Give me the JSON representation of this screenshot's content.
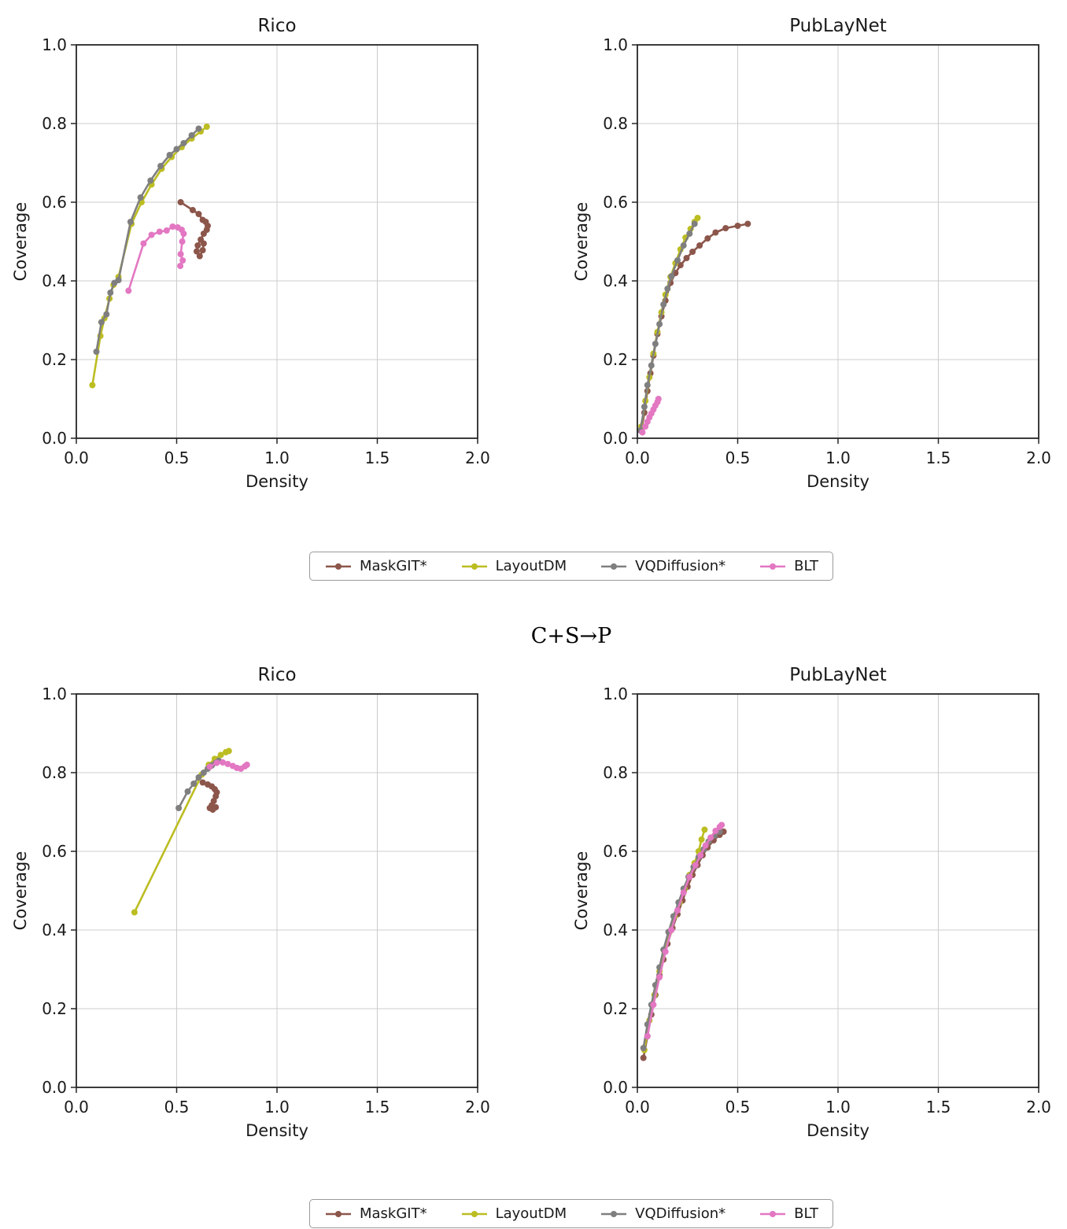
{
  "section_title": "C+S→P",
  "legend": {
    "labels": [
      "MaskGIT*",
      "LayoutDM",
      "VQDiffusion*",
      "BLT"
    ]
  },
  "colors": {
    "maskgit": "#8c564b",
    "layoutdm": "#bcbd22",
    "vqdiffusion": "#7f7f7f",
    "blt": "#e377c2"
  },
  "chart_data": [
    {
      "type": "line",
      "title": "Rico",
      "xlabel": "Density",
      "ylabel": "Coverage",
      "xlim": [
        0.0,
        2.0
      ],
      "ylim": [
        0.0,
        1.0
      ],
      "xticks": [
        0.0,
        0.5,
        1.0,
        1.5,
        2.0
      ],
      "yticks": [
        0.0,
        0.2,
        0.4,
        0.6,
        0.8,
        1.0
      ],
      "grid": true,
      "series": [
        {
          "name": "MaskGIT*",
          "color": "#8c564b",
          "points": [
            [
              0.52,
              0.6
            ],
            [
              0.58,
              0.58
            ],
            [
              0.61,
              0.57
            ],
            [
              0.63,
              0.555
            ],
            [
              0.645,
              0.55
            ],
            [
              0.655,
              0.54
            ],
            [
              0.65,
              0.53
            ],
            [
              0.635,
              0.52
            ],
            [
              0.62,
              0.505
            ],
            [
              0.605,
              0.49
            ],
            [
              0.6,
              0.475
            ],
            [
              0.615,
              0.463
            ],
            [
              0.63,
              0.478
            ],
            [
              0.635,
              0.495
            ]
          ]
        },
        {
          "name": "LayoutDM",
          "color": "#bcbd22",
          "points": [
            [
              0.08,
              0.135
            ],
            [
              0.12,
              0.26
            ],
            [
              0.14,
              0.305
            ],
            [
              0.165,
              0.355
            ],
            [
              0.185,
              0.39
            ],
            [
              0.21,
              0.41
            ],
            [
              0.275,
              0.545
            ],
            [
              0.325,
              0.6
            ],
            [
              0.375,
              0.645
            ],
            [
              0.425,
              0.685
            ],
            [
              0.475,
              0.715
            ],
            [
              0.525,
              0.74
            ],
            [
              0.575,
              0.762
            ],
            [
              0.62,
              0.78
            ],
            [
              0.65,
              0.792
            ]
          ]
        },
        {
          "name": "VQDiffusion*",
          "color": "#7f7f7f",
          "points": [
            [
              0.1,
              0.22
            ],
            [
              0.125,
              0.295
            ],
            [
              0.15,
              0.315
            ],
            [
              0.17,
              0.37
            ],
            [
              0.19,
              0.395
            ],
            [
              0.21,
              0.402
            ],
            [
              0.27,
              0.55
            ],
            [
              0.32,
              0.612
            ],
            [
              0.37,
              0.655
            ],
            [
              0.42,
              0.692
            ],
            [
              0.465,
              0.72
            ],
            [
              0.5,
              0.735
            ],
            [
              0.535,
              0.75
            ],
            [
              0.575,
              0.77
            ],
            [
              0.61,
              0.787
            ]
          ]
        },
        {
          "name": "BLT",
          "color": "#e377c2",
          "points": [
            [
              0.26,
              0.375
            ],
            [
              0.335,
              0.495
            ],
            [
              0.375,
              0.517
            ],
            [
              0.415,
              0.525
            ],
            [
              0.45,
              0.528
            ],
            [
              0.48,
              0.538
            ],
            [
              0.505,
              0.536
            ],
            [
              0.525,
              0.53
            ],
            [
              0.535,
              0.52
            ],
            [
              0.528,
              0.5
            ],
            [
              0.52,
              0.468
            ],
            [
              0.53,
              0.452
            ],
            [
              0.518,
              0.438
            ]
          ]
        }
      ]
    },
    {
      "type": "line",
      "title": "PubLayNet",
      "xlabel": "Density",
      "ylabel": "Coverage",
      "xlim": [
        0.0,
        2.0
      ],
      "ylim": [
        0.0,
        1.0
      ],
      "xticks": [
        0.0,
        0.5,
        1.0,
        1.5,
        2.0
      ],
      "yticks": [
        0.0,
        0.2,
        0.4,
        0.6,
        0.8,
        1.0
      ],
      "grid": true,
      "series": [
        {
          "name": "MaskGIT*",
          "color": "#8c564b",
          "points": [
            [
              0.02,
              0.02
            ],
            [
              0.035,
              0.065
            ],
            [
              0.05,
              0.12
            ],
            [
              0.065,
              0.165
            ],
            [
              0.08,
              0.21
            ],
            [
              0.1,
              0.265
            ],
            [
              0.12,
              0.31
            ],
            [
              0.14,
              0.35
            ],
            [
              0.165,
              0.395
            ],
            [
              0.19,
              0.42
            ],
            [
              0.215,
              0.44
            ],
            [
              0.245,
              0.458
            ],
            [
              0.275,
              0.474
            ],
            [
              0.31,
              0.49
            ],
            [
              0.35,
              0.508
            ],
            [
              0.39,
              0.523
            ],
            [
              0.44,
              0.534
            ],
            [
              0.5,
              0.54
            ],
            [
              0.55,
              0.545
            ]
          ]
        },
        {
          "name": "LayoutDM",
          "color": "#bcbd22",
          "points": [
            [
              0.02,
              0.03
            ],
            [
              0.04,
              0.095
            ],
            [
              0.06,
              0.155
            ],
            [
              0.08,
              0.215
            ],
            [
              0.1,
              0.27
            ],
            [
              0.12,
              0.32
            ],
            [
              0.14,
              0.365
            ],
            [
              0.165,
              0.41
            ],
            [
              0.19,
              0.445
            ],
            [
              0.215,
              0.48
            ],
            [
              0.24,
              0.51
            ],
            [
              0.265,
              0.532
            ],
            [
              0.285,
              0.55
            ],
            [
              0.3,
              0.56
            ]
          ]
        },
        {
          "name": "VQDiffusion*",
          "color": "#7f7f7f",
          "points": [
            [
              0.015,
              0.02
            ],
            [
              0.035,
              0.08
            ],
            [
              0.05,
              0.135
            ],
            [
              0.07,
              0.185
            ],
            [
              0.09,
              0.24
            ],
            [
              0.11,
              0.29
            ],
            [
              0.13,
              0.34
            ],
            [
              0.15,
              0.38
            ],
            [
              0.17,
              0.412
            ],
            [
              0.2,
              0.452
            ],
            [
              0.23,
              0.49
            ],
            [
              0.26,
              0.52
            ],
            [
              0.285,
              0.545
            ]
          ]
        },
        {
          "name": "BLT",
          "color": "#e377c2",
          "points": [
            [
              0.025,
              0.015
            ],
            [
              0.04,
              0.03
            ],
            [
              0.05,
              0.042
            ],
            [
              0.06,
              0.053
            ],
            [
              0.07,
              0.063
            ],
            [
              0.08,
              0.073
            ],
            [
              0.09,
              0.083
            ],
            [
              0.1,
              0.092
            ],
            [
              0.105,
              0.1
            ]
          ]
        }
      ]
    },
    {
      "type": "line",
      "title": "Rico",
      "xlabel": "Density",
      "ylabel": "Coverage",
      "xlim": [
        0.0,
        2.0
      ],
      "ylim": [
        0.0,
        1.0
      ],
      "xticks": [
        0.0,
        0.5,
        1.0,
        1.5,
        2.0
      ],
      "yticks": [
        0.0,
        0.2,
        0.4,
        0.6,
        0.8,
        1.0
      ],
      "grid": true,
      "series": [
        {
          "name": "MaskGIT*",
          "color": "#8c564b",
          "points": [
            [
              0.63,
              0.775
            ],
            [
              0.655,
              0.77
            ],
            [
              0.675,
              0.765
            ],
            [
              0.69,
              0.758
            ],
            [
              0.7,
              0.75
            ],
            [
              0.695,
              0.74
            ],
            [
              0.685,
              0.728
            ],
            [
              0.675,
              0.717
            ],
            [
              0.665,
              0.71
            ],
            [
              0.68,
              0.706
            ],
            [
              0.695,
              0.712
            ]
          ]
        },
        {
          "name": "LayoutDM",
          "color": "#bcbd22",
          "points": [
            [
              0.29,
              0.445
            ],
            [
              0.625,
              0.795
            ],
            [
              0.66,
              0.82
            ],
            [
              0.69,
              0.835
            ],
            [
              0.72,
              0.845
            ],
            [
              0.745,
              0.852
            ],
            [
              0.76,
              0.855
            ]
          ]
        },
        {
          "name": "VQDiffusion*",
          "color": "#7f7f7f",
          "points": [
            [
              0.51,
              0.71
            ],
            [
              0.555,
              0.752
            ],
            [
              0.585,
              0.772
            ],
            [
              0.61,
              0.788
            ],
            [
              0.635,
              0.8
            ],
            [
              0.655,
              0.81
            ],
            [
              0.675,
              0.818
            ],
            [
              0.695,
              0.825
            ],
            [
              0.71,
              0.83
            ]
          ]
        },
        {
          "name": "BLT",
          "color": "#e377c2",
          "points": [
            [
              0.665,
              0.815
            ],
            [
              0.7,
              0.825
            ],
            [
              0.73,
              0.826
            ],
            [
              0.755,
              0.822
            ],
            [
              0.78,
              0.817
            ],
            [
              0.8,
              0.812
            ],
            [
              0.82,
              0.81
            ],
            [
              0.84,
              0.816
            ],
            [
              0.85,
              0.82
            ]
          ]
        }
      ]
    },
    {
      "type": "line",
      "title": "PubLayNet",
      "xlabel": "Density",
      "ylabel": "Coverage",
      "xlim": [
        0.0,
        2.0
      ],
      "ylim": [
        0.0,
        1.0
      ],
      "xticks": [
        0.0,
        0.5,
        1.0,
        1.5,
        2.0
      ],
      "yticks": [
        0.0,
        0.2,
        0.4,
        0.6,
        0.8,
        1.0
      ],
      "grid": true,
      "series": [
        {
          "name": "MaskGIT*",
          "color": "#8c564b",
          "points": [
            [
              0.03,
              0.075
            ],
            [
              0.05,
              0.13
            ],
            [
              0.07,
              0.185
            ],
            [
              0.09,
              0.235
            ],
            [
              0.11,
              0.285
            ],
            [
              0.13,
              0.325
            ],
            [
              0.15,
              0.365
            ],
            [
              0.175,
              0.405
            ],
            [
              0.2,
              0.44
            ],
            [
              0.225,
              0.475
            ],
            [
              0.25,
              0.51
            ],
            [
              0.275,
              0.54
            ],
            [
              0.3,
              0.565
            ],
            [
              0.325,
              0.59
            ],
            [
              0.35,
              0.61
            ],
            [
              0.38,
              0.628
            ],
            [
              0.41,
              0.642
            ],
            [
              0.43,
              0.65
            ]
          ]
        },
        {
          "name": "LayoutDM",
          "color": "#bcbd22",
          "points": [
            [
              0.035,
              0.095
            ],
            [
              0.06,
              0.17
            ],
            [
              0.085,
              0.235
            ],
            [
              0.11,
              0.295
            ],
            [
              0.135,
              0.345
            ],
            [
              0.16,
              0.395
            ],
            [
              0.185,
              0.435
            ],
            [
              0.21,
              0.47
            ],
            [
              0.235,
              0.505
            ],
            [
              0.26,
              0.54
            ],
            [
              0.285,
              0.57
            ],
            [
              0.305,
              0.6
            ],
            [
              0.32,
              0.63
            ],
            [
              0.335,
              0.655
            ]
          ]
        },
        {
          "name": "VQDiffusion*",
          "color": "#7f7f7f",
          "points": [
            [
              0.03,
              0.1
            ],
            [
              0.05,
              0.16
            ],
            [
              0.07,
              0.21
            ],
            [
              0.09,
              0.26
            ],
            [
              0.11,
              0.305
            ],
            [
              0.13,
              0.35
            ],
            [
              0.155,
              0.395
            ],
            [
              0.18,
              0.435
            ],
            [
              0.205,
              0.47
            ],
            [
              0.23,
              0.505
            ],
            [
              0.255,
              0.535
            ],
            [
              0.28,
              0.56
            ],
            [
              0.305,
              0.585
            ],
            [
              0.33,
              0.605
            ],
            [
              0.355,
              0.625
            ],
            [
              0.385,
              0.64
            ],
            [
              0.41,
              0.65
            ]
          ]
        },
        {
          "name": "BLT",
          "color": "#e377c2",
          "points": [
            [
              0.05,
              0.13
            ],
            [
              0.08,
              0.21
            ],
            [
              0.11,
              0.28
            ],
            [
              0.14,
              0.345
            ],
            [
              0.17,
              0.4
            ],
            [
              0.2,
              0.45
            ],
            [
              0.23,
              0.495
            ],
            [
              0.26,
              0.535
            ],
            [
              0.29,
              0.565
            ],
            [
              0.315,
              0.59
            ],
            [
              0.34,
              0.615
            ],
            [
              0.365,
              0.635
            ],
            [
              0.39,
              0.652
            ],
            [
              0.41,
              0.662
            ],
            [
              0.42,
              0.667
            ]
          ]
        }
      ]
    }
  ]
}
